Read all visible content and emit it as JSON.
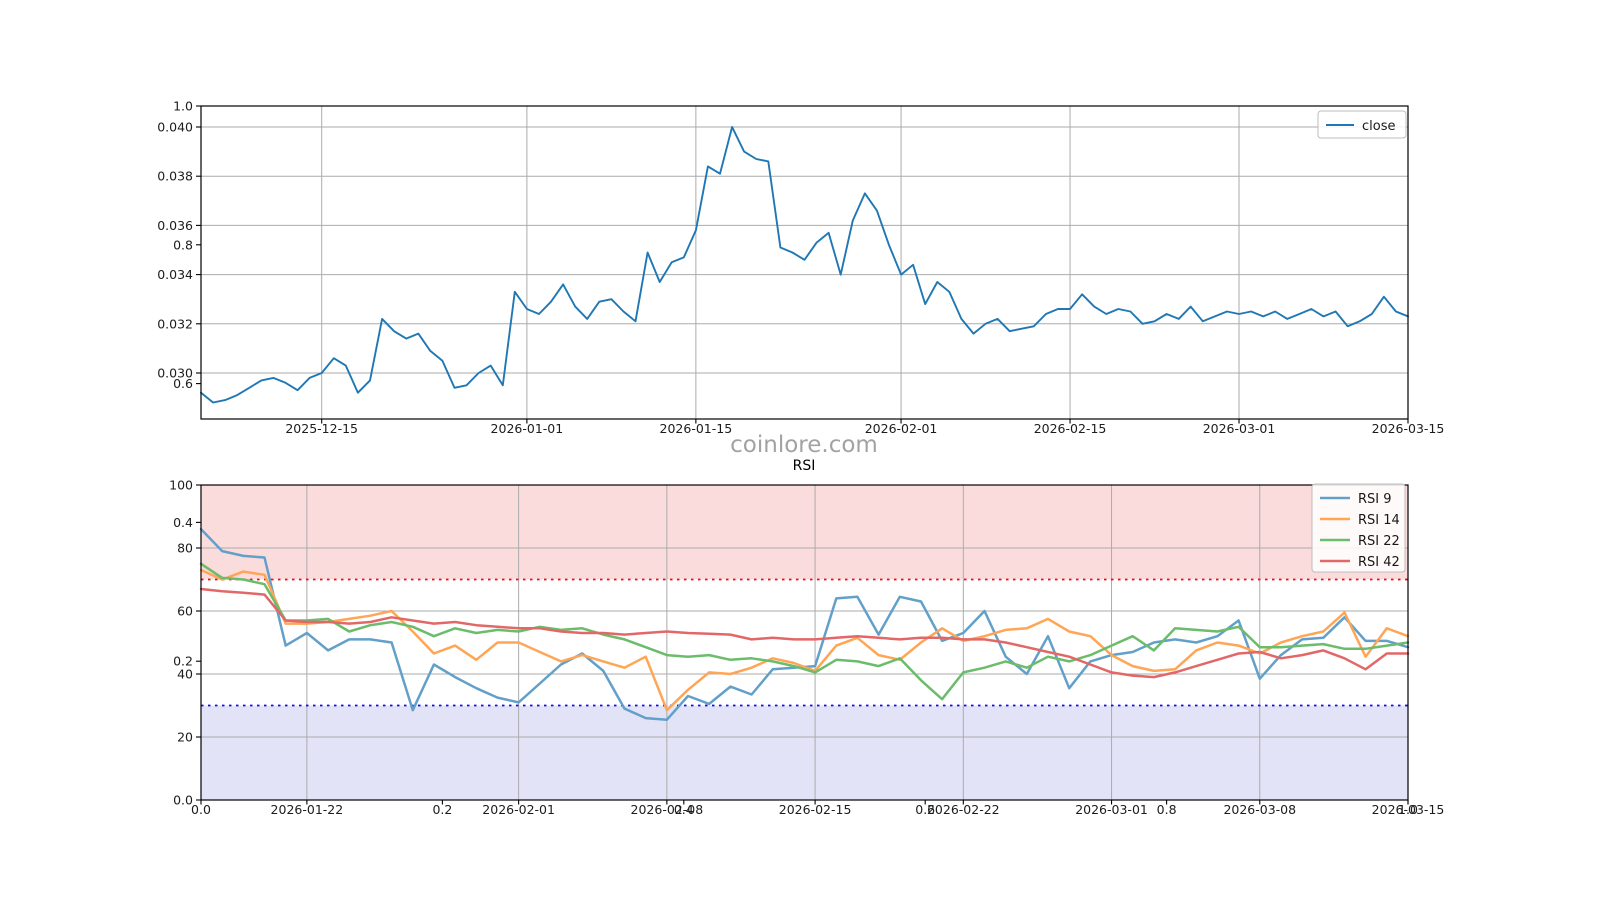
{
  "watermark": "coinlore.com",
  "figure_ticks": {
    "x_labels": [
      "0.0",
      "0.2",
      "0.4",
      "0.6",
      "0.8",
      "1.0"
    ],
    "y_labels": [
      "1.0",
      "0.8",
      "0.6",
      "0.4",
      "0.2",
      "0.0"
    ]
  },
  "style": {
    "background": "#ffffff",
    "grid_color": "#ababab",
    "spine_color": "#000000",
    "overbought_band_color": "#fbdcdd",
    "oversold_band_color": "#e3e3f8",
    "overbought_line_color": "#e80c0c",
    "oversold_line_color": "#0c0ce8"
  },
  "chart_data": [
    {
      "type": "line",
      "title": "",
      "start_date": "2025-12-05",
      "end_date": "2026-03-15",
      "x_tick_labels": [
        "2025-12-15",
        "2026-01-01",
        "2026-01-15",
        "2026-02-01",
        "2026-02-15",
        "2026-03-01",
        "2026-03-15"
      ],
      "x_tick_indices": [
        10,
        27,
        41,
        58,
        72,
        86,
        100
      ],
      "y_tick_labels": [
        "0.040",
        "0.038",
        "0.036",
        "0.034",
        "0.032",
        "0.030"
      ],
      "y_tick_values": [
        0.04,
        0.038,
        0.036,
        0.034,
        0.032,
        0.03
      ],
      "ylim": [
        0.0281,
        0.0409
      ],
      "grid": true,
      "legend_position": "upper right",
      "series": [
        {
          "name": "close",
          "color": "#1f77b4",
          "values": [
            0.0292,
            0.0288,
            0.0289,
            0.0291,
            0.0294,
            0.0297,
            0.0298,
            0.0296,
            0.0293,
            0.0298,
            0.03,
            0.0306,
            0.0303,
            0.0292,
            0.0297,
            0.0322,
            0.0317,
            0.0314,
            0.0316,
            0.0309,
            0.0305,
            0.0294,
            0.0295,
            0.03,
            0.0303,
            0.0295,
            0.0333,
            0.0326,
            0.0324,
            0.0329,
            0.0336,
            0.0327,
            0.0322,
            0.0329,
            0.033,
            0.0325,
            0.0321,
            0.0349,
            0.0337,
            0.0345,
            0.0347,
            0.0358,
            0.0384,
            0.0381,
            0.04,
            0.039,
            0.0387,
            0.0386,
            0.0351,
            0.0349,
            0.0346,
            0.0353,
            0.0357,
            0.034,
            0.0362,
            0.0373,
            0.0366,
            0.0352,
            0.034,
            0.0344,
            0.0328,
            0.0337,
            0.0333,
            0.0322,
            0.0316,
            0.032,
            0.0322,
            0.0317,
            0.0318,
            0.0319,
            0.0324,
            0.0326,
            0.0326,
            0.0332,
            0.0327,
            0.0324,
            0.0326,
            0.0325,
            0.032,
            0.0321,
            0.0324,
            0.0322,
            0.0327,
            0.0321,
            0.0323,
            0.0325,
            0.0324,
            0.0325,
            0.0323,
            0.0325,
            0.0322,
            0.0324,
            0.0326,
            0.0323,
            0.0325,
            0.0319,
            0.0321,
            0.0324,
            0.0331,
            0.0325,
            0.0323
          ]
        }
      ]
    },
    {
      "type": "line",
      "title": "RSI",
      "start_date": "2026-01-17",
      "end_date": "2026-03-15",
      "x_tick_labels": [
        "2026-01-22",
        "2026-02-01",
        "2026-02-08",
        "2026-02-15",
        "2026-02-22",
        "2026-03-01",
        "2026-03-08",
        "2026-03-15"
      ],
      "x_tick_indices": [
        5,
        15,
        22,
        29,
        36,
        43,
        50,
        57
      ],
      "y_tick_labels": [
        "100",
        "80",
        "60",
        "40",
        "20"
      ],
      "y_tick_values": [
        100,
        80,
        60,
        40,
        20
      ],
      "ylim": [
        0,
        100
      ],
      "grid": true,
      "overbought_level": 70,
      "oversold_level": 30,
      "legend_position": "upper right",
      "series": [
        {
          "name": "RSI 9",
          "color": "#62a0ca",
          "values": [
            86,
            79,
            77.5,
            77,
            49,
            53,
            47.5,
            51,
            51,
            50,
            28.5,
            43,
            39,
            35.5,
            32.5,
            31,
            37,
            43,
            46.5,
            41,
            29,
            26,
            25.5,
            33,
            30.5,
            36,
            33.5,
            41.5,
            42,
            42.5,
            64,
            64.5,
            52.5,
            64.5,
            63,
            50.5,
            53,
            60,
            45.5,
            40,
            52,
            35.5,
            44,
            46,
            47,
            50,
            51,
            50,
            52,
            57,
            38.5,
            46,
            51,
            51.5,
            58,
            50.5,
            50.5,
            48.5
          ]
        },
        {
          "name": "RSI 14",
          "color": "#ffa556",
          "values": [
            73,
            70,
            72.5,
            71.5,
            56,
            56,
            56.5,
            57.5,
            58.5,
            60,
            53.5,
            46.5,
            49,
            44.5,
            50,
            50,
            47,
            44,
            46,
            44,
            42,
            45.5,
            28.5,
            35,
            40.5,
            40,
            42,
            45,
            43.5,
            41,
            49,
            51.5,
            46,
            44.5,
            50,
            54.5,
            50.5,
            52,
            54,
            54.5,
            57.5,
            53.5,
            52,
            46,
            42.5,
            41,
            41.5,
            47.5,
            50,
            49,
            46.5,
            50,
            52,
            53.5,
            59.5,
            45.5,
            54.5,
            52
          ]
        },
        {
          "name": "RSI 22",
          "color": "#6bbc6b",
          "values": [
            75,
            70.5,
            70,
            68.5,
            57,
            57,
            57.5,
            53.5,
            55.5,
            56.5,
            55,
            52,
            54.5,
            53,
            54,
            53.5,
            55,
            54,
            54.5,
            52.5,
            51,
            48.5,
            46,
            45.5,
            46,
            44.5,
            45,
            44,
            42.5,
            40.5,
            44.5,
            44,
            42.5,
            45,
            38,
            32,
            40.5,
            42,
            44,
            42,
            45.5,
            44,
            46,
            49,
            52,
            47.5,
            54.5,
            54,
            53.5,
            55,
            48.5,
            48.5,
            49,
            49.5,
            48,
            48,
            49,
            50
          ]
        },
        {
          "name": "RSI 42",
          "color": "#e26868",
          "values": [
            67,
            66.3,
            65.8,
            65.2,
            57,
            56.5,
            56.5,
            56,
            56.5,
            58,
            57,
            56,
            56.5,
            55.5,
            55,
            54.5,
            54.5,
            53.5,
            53,
            53,
            52.5,
            53,
            53.5,
            53,
            52.8,
            52.5,
            51,
            51.5,
            51,
            51,
            51.5,
            52,
            51.5,
            51,
            51.5,
            51.5,
            51,
            51,
            50,
            48.5,
            47,
            45.5,
            43,
            40.5,
            39.5,
            39,
            40.5,
            42.5,
            44.5,
            46.5,
            47,
            45,
            46,
            47.5,
            45,
            41.5,
            46.5,
            46.5
          ]
        }
      ]
    }
  ]
}
